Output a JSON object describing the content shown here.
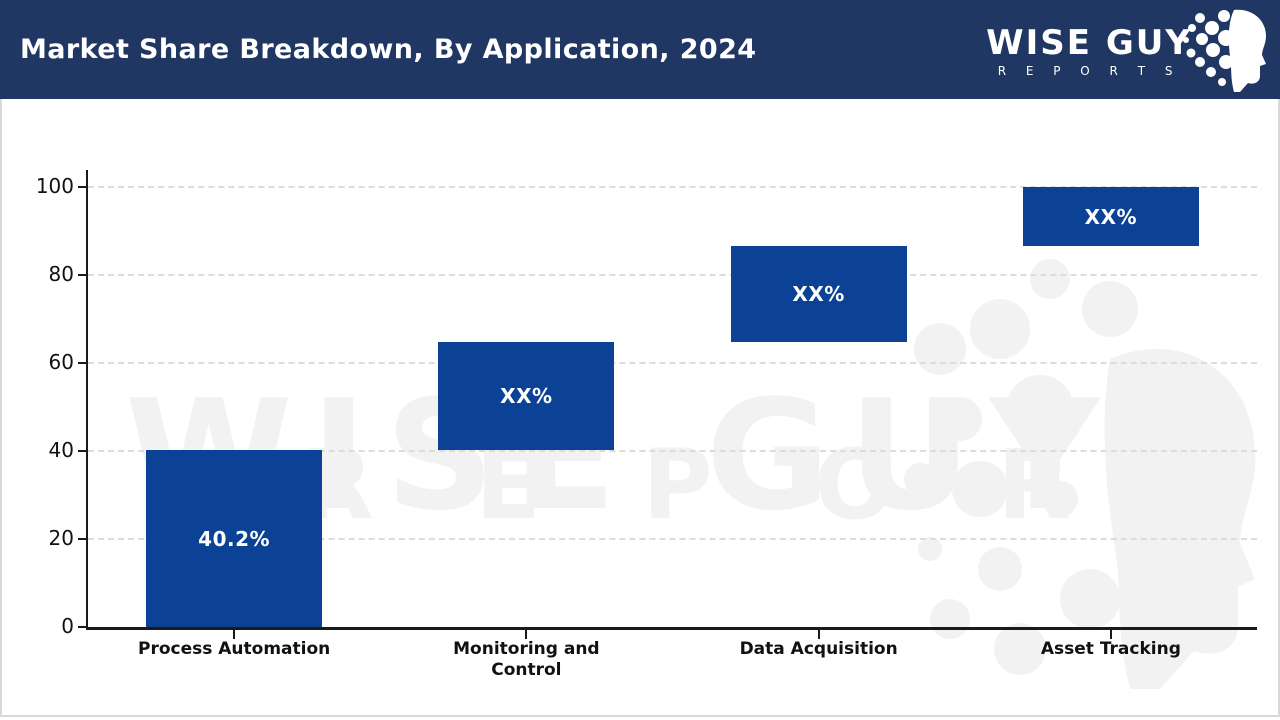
{
  "header": {
    "title": "Market Share Breakdown, By Application, 2024",
    "bg_color": "#213763",
    "logo": {
      "name": "WISE GUY",
      "tagline": "R E P O R T S"
    }
  },
  "watermark": {
    "line1": "WISE GUY",
    "line2": "R E P O R T S"
  },
  "chart_data": {
    "type": "bar",
    "subtype": "waterfall",
    "title": "Market Share Breakdown, By Application, 2024",
    "categories": [
      "Process Automation",
      "Monitoring and Control",
      "Data Acquisition",
      "Asset Tracking"
    ],
    "category_lines": [
      [
        "Process Automation"
      ],
      [
        "Monitoring and",
        "Control"
      ],
      [
        "Data Acquisition"
      ],
      [
        "Asset Tracking"
      ]
    ],
    "segments": [
      {
        "category": "Process Automation",
        "start": 0,
        "end": 40.2,
        "label": "40.2%"
      },
      {
        "category": "Monitoring and Control",
        "start": 40.2,
        "end": 64.7,
        "label": "XX%"
      },
      {
        "category": "Data Acquisition",
        "start": 64.7,
        "end": 86.5,
        "label": "XX%"
      },
      {
        "category": "Asset Tracking",
        "start": 86.5,
        "end": 100,
        "label": "XX%"
      }
    ],
    "ylim": [
      0,
      100
    ],
    "yticks": [
      0,
      20,
      40,
      60,
      80,
      100
    ],
    "xlabel": "",
    "ylabel": "",
    "grid": "horizontal-dashed",
    "legend": "none",
    "bar_color": "#0b4295",
    "bar_label_color": "#ffffff",
    "axis_color": "#1a1a1a",
    "grid_color": "#dcdcdc"
  }
}
